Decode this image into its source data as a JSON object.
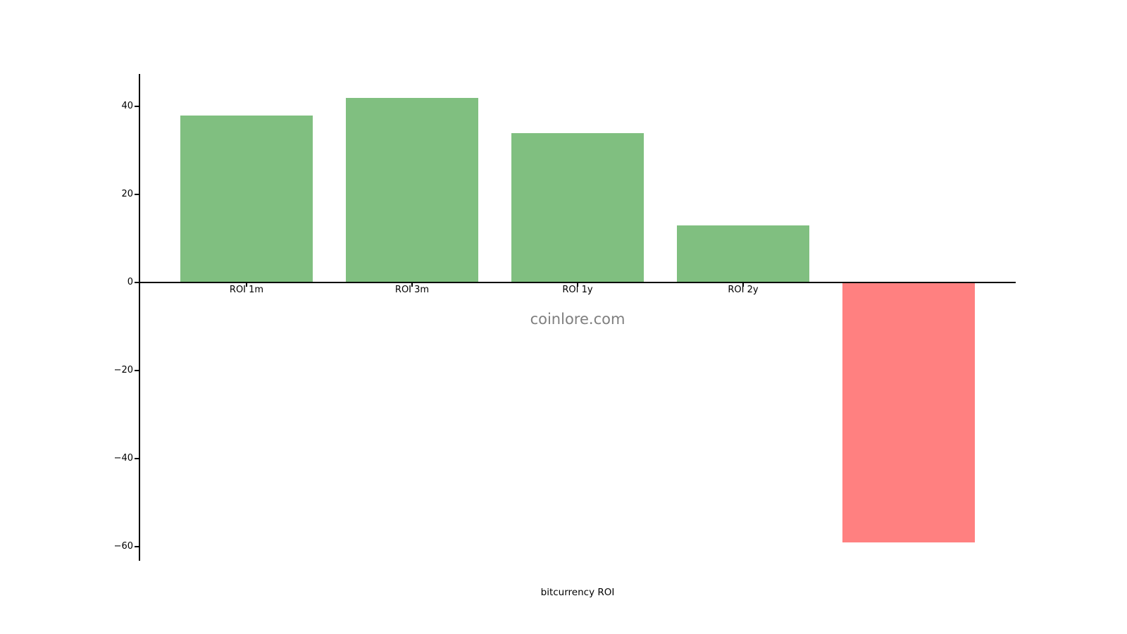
{
  "chart_data": {
    "type": "bar",
    "title": "",
    "xlabel": "bitcurrency ROI",
    "ylabel": "",
    "categories": [
      "ROI 1m",
      "ROI 3m",
      "ROI 1y",
      "ROI 2y",
      ""
    ],
    "values": [
      38,
      42,
      34,
      13,
      -59
    ],
    "yticks": [
      40,
      20,
      0,
      -20,
      -40,
      -60
    ],
    "ylim": [
      -63,
      47
    ],
    "positive_color": "#80bf80",
    "negative_color": "#ff8080",
    "axis_color": "#000000",
    "text_color": "#000000",
    "grid": false,
    "legend": null
  },
  "watermark": {
    "text": "coinlore.com",
    "color": "#7f7f7f"
  }
}
